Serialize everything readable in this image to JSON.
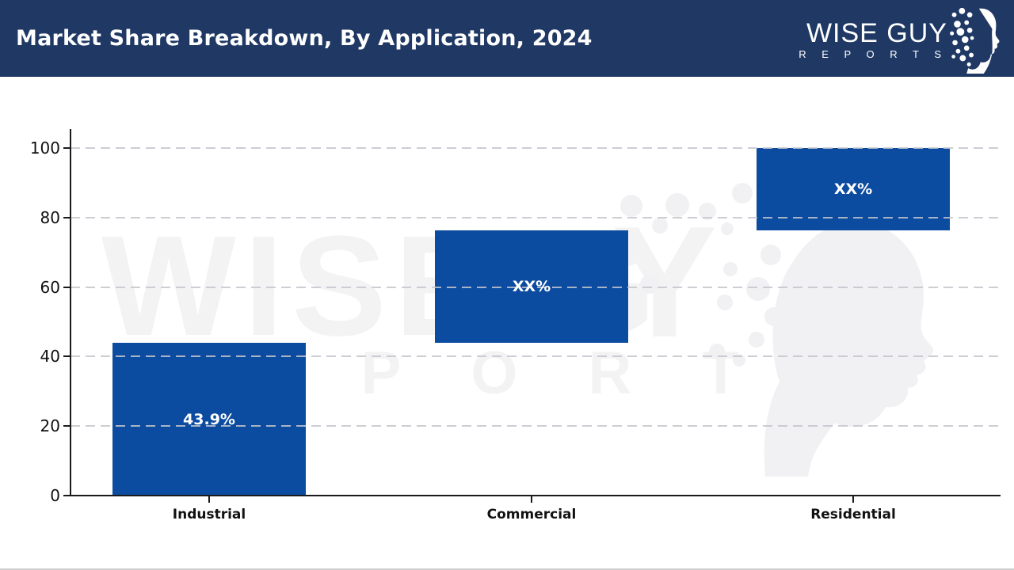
{
  "header": {
    "title": "Market Share Breakdown, By Application, 2024",
    "brand": {
      "line1": "WISE GUY",
      "line2": "R E P O R T S"
    }
  },
  "icons": {
    "brand_logo": "dotted-face-profile-icon",
    "watermark_logo": "dotted-face-profile-icon"
  },
  "watermark": {
    "line1": "WISE G",
    "letter_y": "Y",
    "line2": "R E P O R T S"
  },
  "colors": {
    "header_bg": "#1F3864",
    "bar": "#0B4BA0",
    "bar_label": "#ffffff",
    "axis": "#1a1a1a",
    "grid": "#d6d6d6",
    "watermark": "#f3f3f4",
    "title_text": "#ffffff"
  },
  "chart_data": {
    "type": "bar",
    "variant": "floating-waterfall",
    "title": "Market Share Breakdown, By Application, 2024",
    "categories": [
      "Industrial",
      "Commercial",
      "Residential"
    ],
    "series": [
      {
        "name": "Market Share (%)",
        "segments": [
          {
            "category": "Industrial",
            "start": 0,
            "end": 43.9,
            "label": "43.9%"
          },
          {
            "category": "Commercial",
            "start": 43.9,
            "end": 76.3,
            "label": "XX%"
          },
          {
            "category": "Residential",
            "start": 76.3,
            "end": 100,
            "label": "XX%"
          }
        ]
      }
    ],
    "xlabel": "",
    "ylabel": "",
    "yticks": [
      0,
      20,
      40,
      60,
      80,
      100
    ],
    "ylim": [
      0,
      105
    ],
    "grid": "dashed-horizontal-over-bars",
    "legend": "none",
    "bar_color": "#0B4BA0",
    "label_color": "#ffffff"
  }
}
